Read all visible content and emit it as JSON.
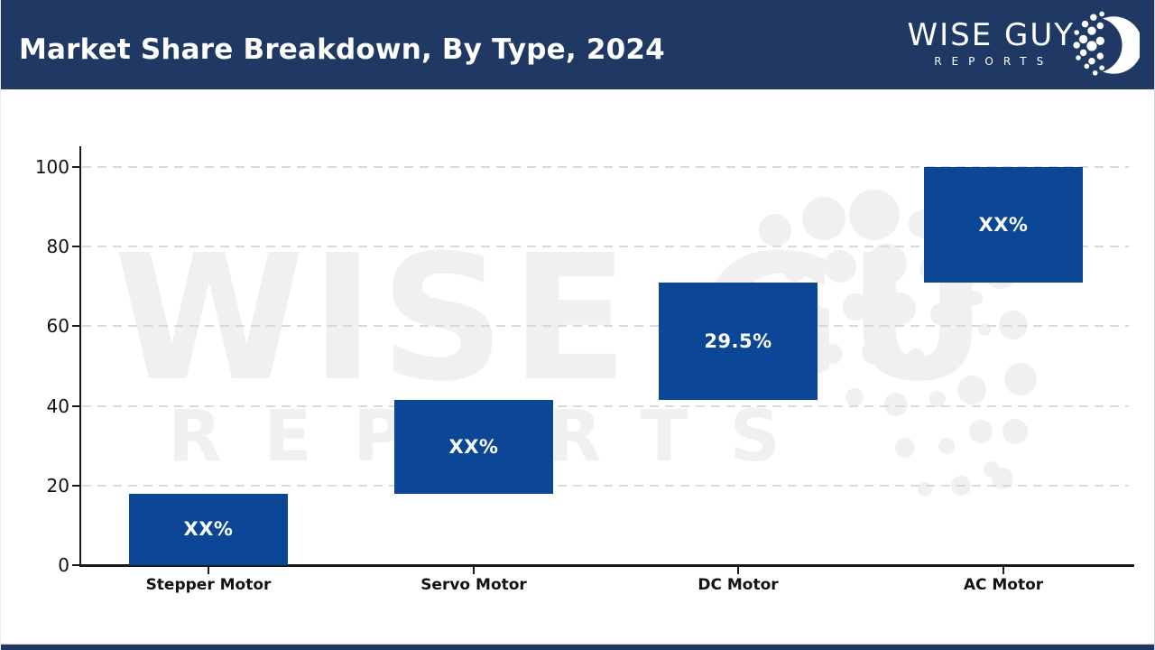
{
  "header": {
    "title": "Market Share Breakdown, By Type, 2024",
    "logo": {
      "line1": "WISE GUY",
      "line2": "REPORTS"
    }
  },
  "watermark": {
    "line1": "WISE GU",
    "line2": "REPORTS"
  },
  "chart_data": {
    "type": "bar",
    "variant": "floating-segment-waterfall",
    "title": "Market Share Breakdown, By Type, 2024",
    "categories": [
      "Stepper Motor",
      "Servo Motor",
      "DC Motor",
      "AC Motor"
    ],
    "bars": [
      {
        "category": "Stepper Motor",
        "start": 0,
        "end": 18,
        "value": 18,
        "label": "XX%"
      },
      {
        "category": "Servo Motor",
        "start": 18,
        "end": 41.5,
        "value": 23.5,
        "label": "XX%"
      },
      {
        "category": "DC Motor",
        "start": 41.5,
        "end": 71,
        "value": 29.5,
        "label": "29.5%"
      },
      {
        "category": "AC Motor",
        "start": 71,
        "end": 100,
        "value": 29,
        "label": "XX%"
      }
    ],
    "y_ticks": [
      0,
      20,
      40,
      60,
      80,
      100
    ],
    "ylim": [
      0,
      105
    ],
    "xlabel": "",
    "ylabel": "",
    "grid": "horizontal-dashed",
    "legend": "none",
    "colors": {
      "bar": "#0b4697",
      "bar_label": "#ffffff",
      "axis": "#1a1a1a",
      "grid": "#d9d9d9",
      "header_bg": "#203864",
      "watermark": "#f0f0f0"
    }
  }
}
